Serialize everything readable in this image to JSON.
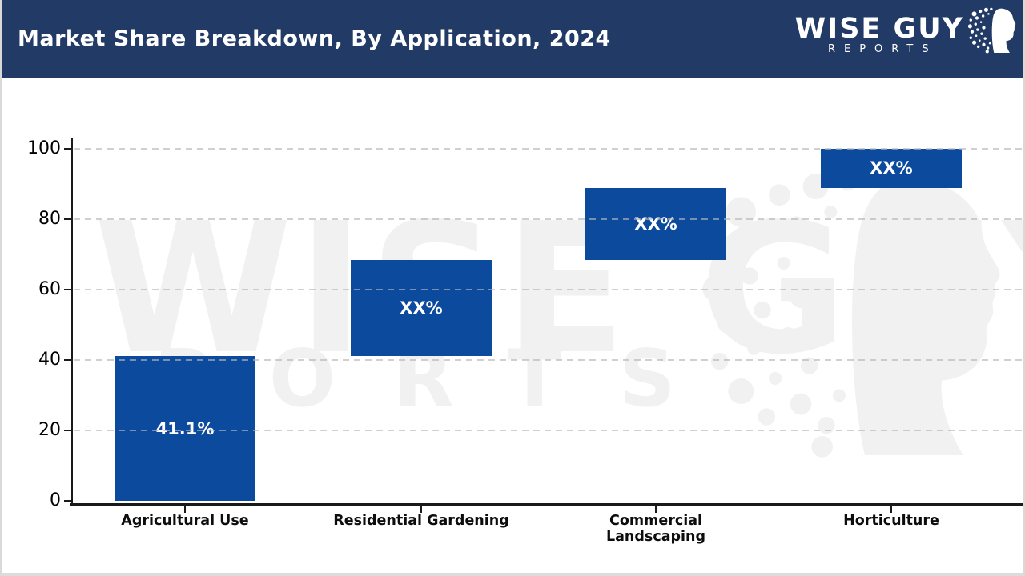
{
  "colors": {
    "header_bg": "#213a66",
    "bar": "#0c4a9e",
    "grid": "#dcdcdc",
    "axis": "#1a1a1a",
    "watermark": "#f1f1f1",
    "page_border": "#d9d9d9"
  },
  "header": {
    "title": "Market Share Breakdown, By Application, 2024",
    "logo": {
      "primary": "WISE GUY",
      "secondary": "REPORTS"
    }
  },
  "watermark": {
    "primary": "WISE GUY",
    "secondary": "PORTS"
  },
  "chart_data": {
    "type": "bar",
    "variant": "stacked-waterfall-percentage",
    "title": "Market Share Breakdown, By Application, 2024",
    "categories": [
      "Agricultural Use",
      "Residential Gardening",
      "Commercial Landscaping",
      "Horticulture"
    ],
    "segments": [
      {
        "category": "Agricultural Use",
        "start": 0,
        "end": 41.1,
        "height": 41.1,
        "label": "41.1%"
      },
      {
        "category": "Residential Gardening",
        "start": 41.1,
        "end": 68.4,
        "height": 27.3,
        "label": "XX%"
      },
      {
        "category": "Commercial Landscaping",
        "start": 68.4,
        "end": 88.9,
        "height": 20.5,
        "label": "XX%"
      },
      {
        "category": "Horticulture",
        "start": 88.9,
        "end": 100,
        "height": 11.1,
        "label": "XX%"
      }
    ],
    "xlabel": "",
    "ylabel": "",
    "ylim": [
      0,
      103
    ],
    "yticks": [
      0,
      20,
      40,
      60,
      80,
      100
    ],
    "grid": "horizontal-dashed",
    "legend": "none",
    "bar_color": "#0c4a9e",
    "bar_label_color": "#ffffff"
  }
}
